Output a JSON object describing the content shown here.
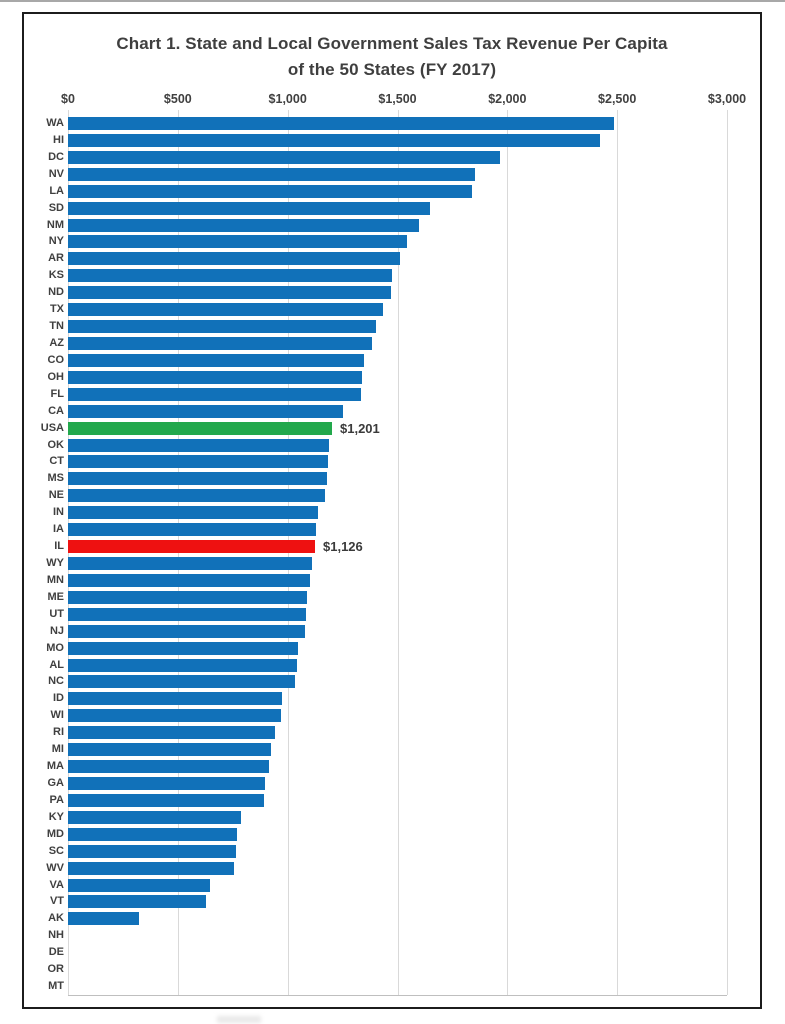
{
  "chart_data": {
    "type": "bar",
    "orientation": "horizontal",
    "title_line1": "Chart 1. State and Local Government Sales Tax Revenue Per Capita",
    "title_line2": "of the 50 States (FY 2017)",
    "x_axis": {
      "position": "top",
      "min": 0,
      "max": 3000,
      "tick_values": [
        0,
        500,
        1000,
        1500,
        2000,
        2500,
        3000
      ],
      "tick_labels": [
        "$0",
        "$500",
        "$1,000",
        "$1,500",
        "$2,000",
        "$2,500",
        "$3,000"
      ]
    },
    "grid": true,
    "legend": "none",
    "categories": [
      "WA",
      "HI",
      "DC",
      "NV",
      "LA",
      "SD",
      "NM",
      "NY",
      "AR",
      "KS",
      "ND",
      "TX",
      "TN",
      "AZ",
      "CO",
      "OH",
      "FL",
      "CA",
      "USA",
      "OK",
      "CT",
      "MS",
      "NE",
      "IN",
      "IA",
      "IL",
      "WY",
      "MN",
      "ME",
      "UT",
      "NJ",
      "MO",
      "AL",
      "NC",
      "ID",
      "WI",
      "RI",
      "MI",
      "MA",
      "GA",
      "PA",
      "KY",
      "MD",
      "SC",
      "WV",
      "VA",
      "VT",
      "AK",
      "NH",
      "DE",
      "OR",
      "MT"
    ],
    "values": [
      2485,
      2420,
      1965,
      1855,
      1838,
      1650,
      1600,
      1545,
      1510,
      1475,
      1470,
      1434,
      1400,
      1384,
      1346,
      1340,
      1335,
      1252,
      1201,
      1186,
      1184,
      1180,
      1171,
      1137,
      1131,
      1126,
      1110,
      1102,
      1086,
      1084,
      1081,
      1049,
      1043,
      1035,
      974,
      969,
      943,
      926,
      915,
      898,
      894,
      789,
      768,
      765,
      756,
      647,
      630,
      322,
      0,
      0,
      0,
      0
    ],
    "data_labels": {
      "USA": "$1,201",
      "IL": "$1,126"
    },
    "highlight_colors": {
      "USA": "#22A84C",
      "IL": "#EE1111"
    },
    "colors": {
      "default_bar": "#1171B9",
      "usa_bar": "#22A84C",
      "il_bar": "#EE1111",
      "text": "#404040",
      "gridline": "#D9D9D9",
      "axis_line": "#BFBFBF",
      "frame_border": "#1C1C1C"
    }
  }
}
